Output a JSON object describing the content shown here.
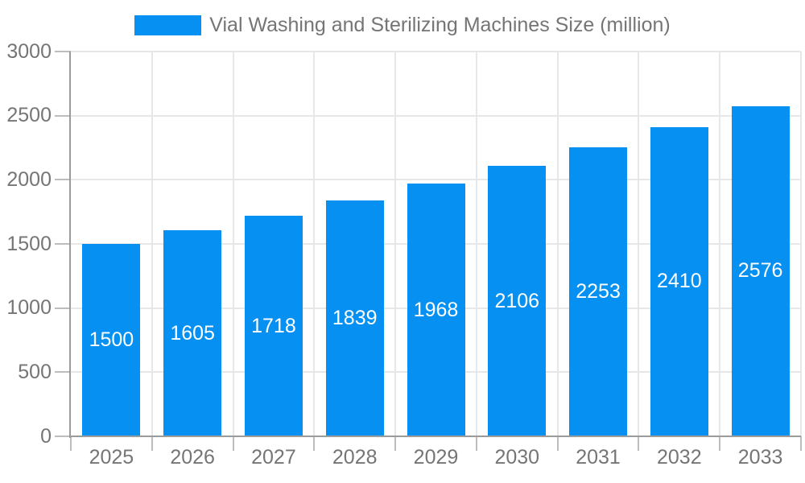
{
  "chart_data": {
    "type": "bar",
    "title": "Vial Washing and Sterilizing Machines Size (million)",
    "legend_position": "top",
    "categories": [
      "2025",
      "2026",
      "2027",
      "2028",
      "2029",
      "2030",
      "2031",
      "2032",
      "2033"
    ],
    "series": [
      {
        "name": "Vial Washing and Sterilizing Machines Size (million)",
        "values": [
          1500,
          1605,
          1718,
          1839,
          1968,
          2106,
          2253,
          2410,
          2576
        ]
      }
    ],
    "xlabel": "",
    "ylabel": "",
    "ylim": [
      0,
      3000
    ],
    "ytick_step": 500,
    "yticks": [
      0,
      500,
      1000,
      1500,
      2000,
      2500,
      3000
    ],
    "grid": true,
    "bar_value_labels": "inside-center",
    "colors": {
      "bar": "#0590F2",
      "bar_label": "#FFFFFF",
      "grid": "#E7E7E7",
      "tick": "#BDBDBD",
      "axis": "#9B9B9B",
      "text": "#757575",
      "background": "#FFFFFF"
    }
  }
}
